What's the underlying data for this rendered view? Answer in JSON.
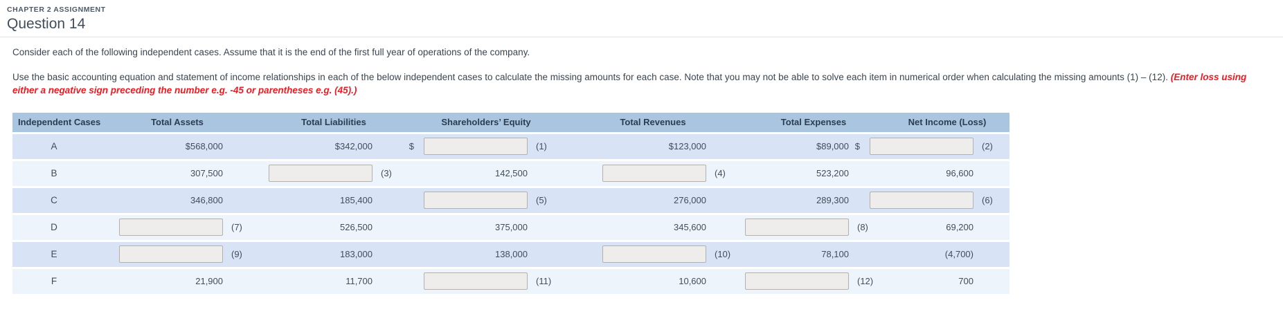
{
  "page": {
    "eyebrow": "CHAPTER 2 ASSIGNMENT",
    "title": "Question 14"
  },
  "instructions": {
    "para1": "Consider each of the following independent cases. Assume that it is the end of the first full year of operations of the company.",
    "para2_normal": "Use the basic accounting equation and statement of income relationships in each of the below independent cases to calculate the missing amounts for each case. Note that you may not be able to solve each item in numerical order when calculating the missing amounts (1) – (12). ",
    "para2_emphasis": "(Enter loss using either a negative sign preceding the number e.g. -45 or parentheses e.g. (45).)"
  },
  "table": {
    "headers": [
      "Independent Cases",
      "Total Assets",
      "Total Liabilities",
      "Shareholders’ Equity",
      "Total Revenues",
      "Total Expenses",
      "Net Income (Loss)"
    ],
    "rows": [
      {
        "case": "A",
        "cells": [
          {
            "value": "$568,000"
          },
          {
            "value": "$342,000"
          },
          {
            "prefix": "$",
            "input": true,
            "label": "(1)"
          },
          {
            "value": "$123,000"
          },
          {
            "value": "$89,000"
          },
          {
            "prefix": "$",
            "input": true,
            "label": "(2)"
          }
        ]
      },
      {
        "case": "B",
        "cells": [
          {
            "value": "307,500"
          },
          {
            "input": true,
            "label": "(3)"
          },
          {
            "value": "142,500"
          },
          {
            "input": true,
            "label": "(4)"
          },
          {
            "value": "523,200"
          },
          {
            "value": "96,600"
          }
        ]
      },
      {
        "case": "C",
        "cells": [
          {
            "value": "346,800"
          },
          {
            "value": "185,400"
          },
          {
            "input": true,
            "label": "(5)"
          },
          {
            "value": "276,000"
          },
          {
            "value": "289,300"
          },
          {
            "input": true,
            "label": "(6)"
          }
        ]
      },
      {
        "case": "D",
        "cells": [
          {
            "input": true,
            "label": "(7)"
          },
          {
            "value": "526,500"
          },
          {
            "value": "375,000"
          },
          {
            "value": "345,600"
          },
          {
            "input": true,
            "label": "(8)"
          },
          {
            "value": "69,200"
          }
        ]
      },
      {
        "case": "E",
        "cells": [
          {
            "input": true,
            "label": "(9)"
          },
          {
            "value": "183,000"
          },
          {
            "value": "138,000"
          },
          {
            "input": true,
            "label": "(10)"
          },
          {
            "value": "78,100"
          },
          {
            "value": "(4,700)"
          }
        ]
      },
      {
        "case": "F",
        "cells": [
          {
            "value": "21,900"
          },
          {
            "value": "11,700"
          },
          {
            "input": true,
            "label": "(11)"
          },
          {
            "value": "10,600"
          },
          {
            "input": true,
            "label": "(12)"
          },
          {
            "value": "700"
          }
        ]
      }
    ]
  },
  "colors": {
    "table_header_bg": "#a9c5e0",
    "row_odd_bg": "#d8e4f5",
    "row_even_bg": "#eef4fc",
    "emphasis_red": "#e61e25",
    "text_ink": "#414d59"
  }
}
